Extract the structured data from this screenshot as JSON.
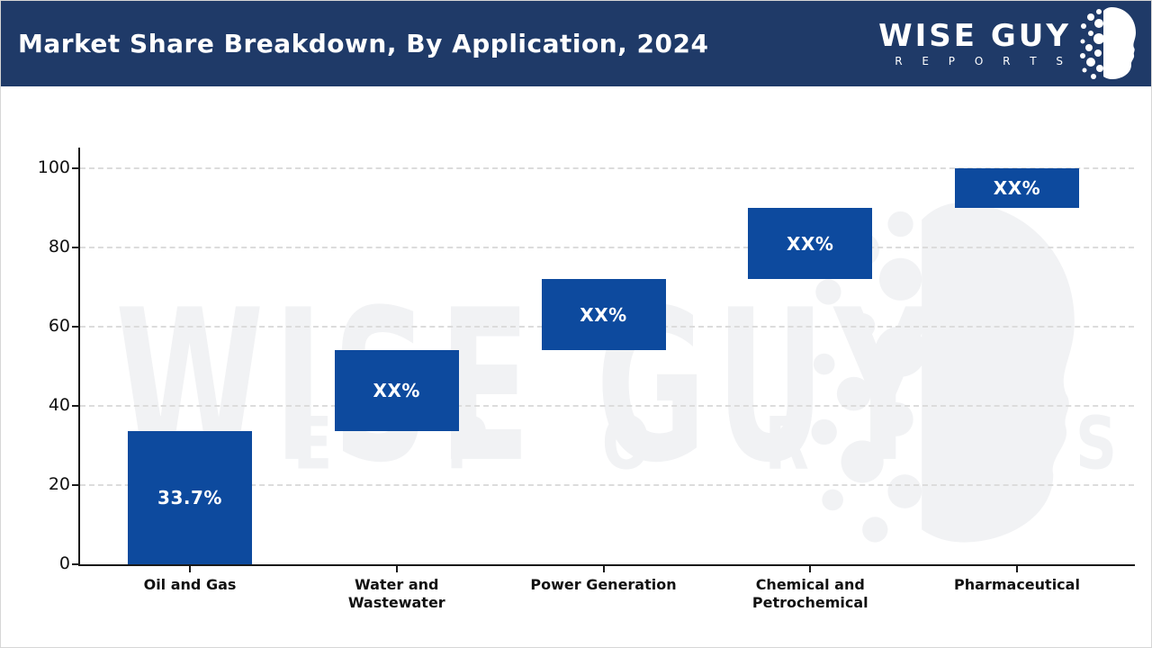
{
  "header": {
    "title": "Market Share Breakdown, By Application, 2024",
    "logo": {
      "line1": "WISE GUY",
      "line2": "R E P O R T S"
    }
  },
  "watermark": {
    "line1": "WISE GUY",
    "line2": "R E P O R T S"
  },
  "colors": {
    "header_bg": "#1f3a68",
    "bar": "#0d4a9e",
    "bar_label": "#ffffff",
    "grid": "#dcdcdc",
    "axis": "#1a1a1a",
    "text": "#111111",
    "watermark": "#f1f2f4"
  },
  "chart_data": {
    "type": "bar",
    "subtype": "floating-waterfall",
    "title": "Market Share Breakdown, By Application, 2024",
    "categories": [
      "Oil and Gas",
      "Water and Wastewater",
      "Power Generation",
      "Chemical and Petrochemical",
      "Pharmaceutical"
    ],
    "bar_ranges": [
      [
        0,
        33.7
      ],
      [
        33.7,
        54
      ],
      [
        54,
        72
      ],
      [
        72,
        90
      ],
      [
        90,
        100
      ]
    ],
    "bar_labels": [
      "33.7%",
      "XX%",
      "XX%",
      "XX%",
      "XX%"
    ],
    "ylim": [
      0,
      100
    ],
    "yticks": [
      0,
      20,
      40,
      60,
      80,
      100
    ],
    "grid": "horizontal-dashed",
    "legend": "none",
    "xlabel": "",
    "ylabel": ""
  }
}
